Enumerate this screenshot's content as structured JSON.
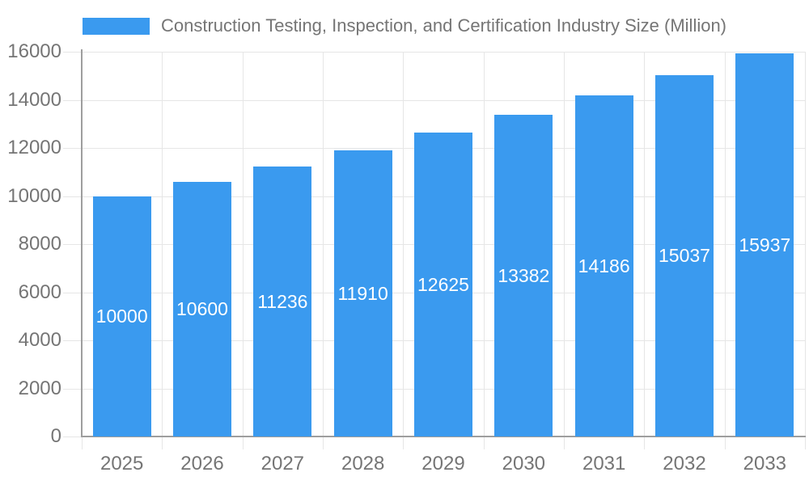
{
  "chart_data": {
    "type": "bar",
    "title": "Construction Testing, Inspection, and Certification Industry Size (Million)",
    "categories": [
      "2025",
      "2026",
      "2027",
      "2028",
      "2029",
      "2030",
      "2031",
      "2032",
      "2033"
    ],
    "values": [
      10000,
      10600,
      11236,
      11910,
      12625,
      13382,
      14186,
      15037,
      15937
    ],
    "bar_value_labels": [
      "10000",
      "10600",
      "11236",
      "11910",
      "12625",
      "13382",
      "14186",
      "15037",
      "15937"
    ],
    "xlabel": "",
    "ylabel": "",
    "ylim": [
      0,
      16000
    ],
    "yticks": [
      0,
      2000,
      4000,
      6000,
      8000,
      10000,
      12000,
      14000,
      16000
    ],
    "ytick_labels": [
      "0",
      "2000",
      "4000",
      "6000",
      "8000",
      "10000",
      "12000",
      "14000",
      "16000"
    ],
    "grid": true,
    "legend_position": "top",
    "colors": {
      "bar": "#3A9AEF",
      "bar_label": "#FFFFFF",
      "axis_text": "#757575",
      "grid_line": "#E6E6E6",
      "axis_line": "#9E9E9E",
      "background": "#FFFFFF"
    }
  }
}
